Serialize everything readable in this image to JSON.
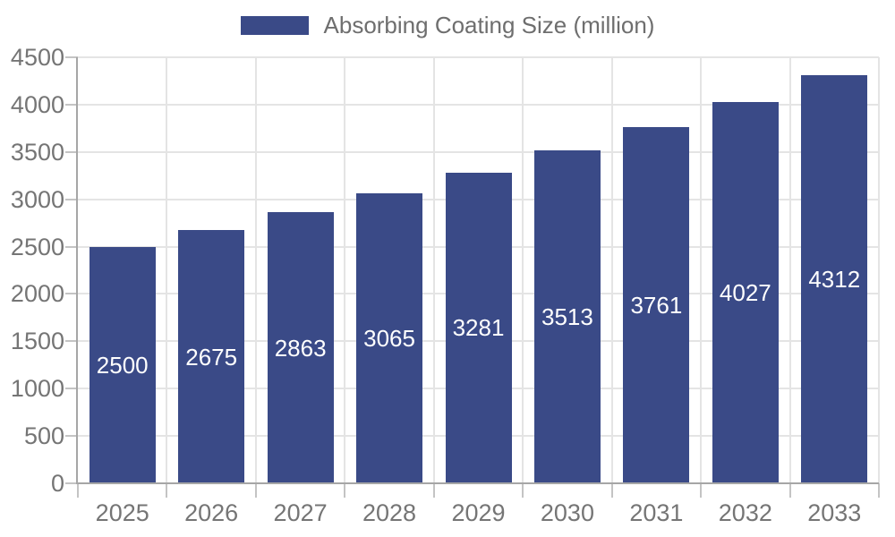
{
  "legend": {
    "label": "Absorbing Coating Size (million)"
  },
  "chart_data": {
    "type": "bar",
    "title": "Absorbing Coating Size (million)",
    "categories": [
      "2025",
      "2026",
      "2027",
      "2028",
      "2029",
      "2030",
      "2031",
      "2032",
      "2033"
    ],
    "values": [
      2500,
      2675,
      2863,
      3065,
      3281,
      3513,
      3761,
      4027,
      4312
    ],
    "xlabel": "",
    "ylabel": "",
    "ylim": [
      0,
      4500
    ],
    "yticks": [
      0,
      500,
      1000,
      1500,
      2000,
      2500,
      3000,
      3500,
      4000,
      4500
    ],
    "grid": true,
    "legend_position": "top",
    "bar_labels_inside": true
  },
  "colors": {
    "bar": "#3A4A87",
    "bar_label": "#FFFFFF",
    "grid": "#E4E4E4",
    "tick": "#C4C4C4",
    "axis": "#A6A6A6",
    "tick_label": "#757575",
    "legend_text": "#6E6E6E",
    "background": "#FFFFFF"
  }
}
